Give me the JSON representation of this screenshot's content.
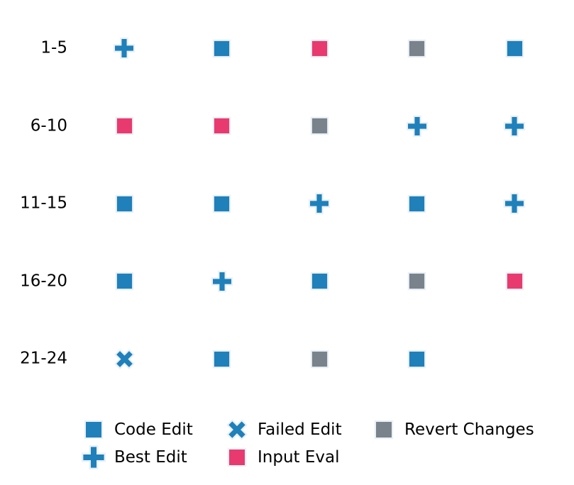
{
  "chart_data": {
    "type": "scatter",
    "description": "Categorical marker grid: edit actions per problem group",
    "rows": [
      "1-5",
      "6-10",
      "11-15",
      "16-20",
      "21-24"
    ],
    "columns_per_row": [
      5,
      5,
      5,
      5,
      4
    ],
    "marker_types": {
      "code": {
        "label": "Code Edit",
        "shape": "square",
        "color": "#1f80ba"
      },
      "failed": {
        "label": "Failed Edit",
        "shape": "x",
        "color": "#1f80ba"
      },
      "revert": {
        "label": "Revert Changes",
        "shape": "square",
        "color": "#7a838c"
      },
      "best": {
        "label": "Best Edit",
        "shape": "plus",
        "color": "#1f80ba"
      },
      "input": {
        "label": "Input Eval",
        "shape": "square",
        "color": "#e83a6e"
      }
    },
    "grid": [
      [
        "best",
        "code",
        "input",
        "revert",
        "code"
      ],
      [
        "input",
        "input",
        "revert",
        "best",
        "best"
      ],
      [
        "code",
        "code",
        "best",
        "code",
        "best"
      ],
      [
        "code",
        "best",
        "code",
        "revert",
        "input"
      ],
      [
        "failed",
        "code",
        "revert",
        "code",
        null
      ]
    ],
    "legend_order": [
      "code",
      "failed",
      "revert",
      "best",
      "input"
    ],
    "legend_position": "bottom",
    "grid_lines": false,
    "colors": {
      "blue": "#1f80ba",
      "pink": "#e83a6e",
      "gray": "#7a838c",
      "halo": "#eaf1f8",
      "text": "#000000",
      "background": "#ffffff"
    }
  }
}
